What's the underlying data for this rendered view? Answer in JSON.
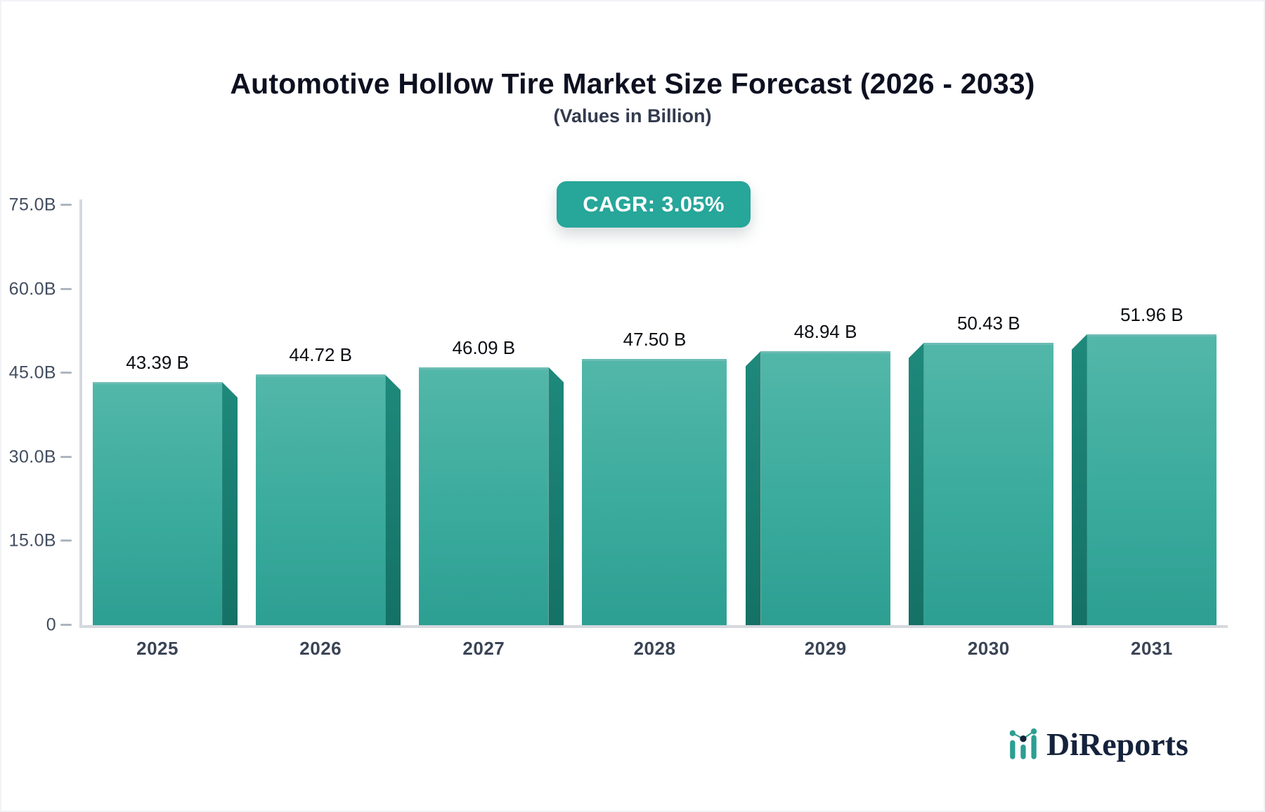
{
  "chart_data": {
    "type": "bar",
    "title": "Automotive Hollow Tire Market Size Forecast (2026 - 2033)",
    "subtitle": "(Values in Billion)",
    "annotation": "CAGR: 3.05%",
    "categories": [
      "2025",
      "2026",
      "2027",
      "2028",
      "2029",
      "2030",
      "2031"
    ],
    "values": [
      43.39,
      44.72,
      46.09,
      47.5,
      48.94,
      50.43,
      51.96
    ],
    "value_labels": [
      "43.39 B",
      "44.72 B",
      "46.09 B",
      "47.50 B",
      "48.94 B",
      "50.43 B",
      "51.96 B"
    ],
    "xlabel": "",
    "ylabel": "",
    "ylim": [
      0,
      75
    ],
    "yticks": [
      {
        "value": 75,
        "label": "75.0B"
      },
      {
        "value": 60,
        "label": "60.0B"
      },
      {
        "value": 45,
        "label": "45.0B"
      },
      {
        "value": 30,
        "label": "30.0B"
      },
      {
        "value": 15,
        "label": "15.0B"
      },
      {
        "value": 0,
        "label": "0"
      }
    ],
    "grid": false,
    "legend": false,
    "bar_style": "3d-bevel",
    "colors": {
      "bar_gradient_top": "#52b7a9",
      "bar_gradient_bottom": "#2d9f92",
      "bar_side_face": "#1a7d70",
      "badge_background": "#27a69a",
      "axis_line": "#d5d8de",
      "tick_text": "#424d5f",
      "title_text": "#0c1020"
    }
  },
  "footer": {
    "brand": "DiReports",
    "brand_icon": "bar-line-chart-logo-icon",
    "brand_color": "#15223b",
    "brand_accent": "#2d9e92"
  }
}
